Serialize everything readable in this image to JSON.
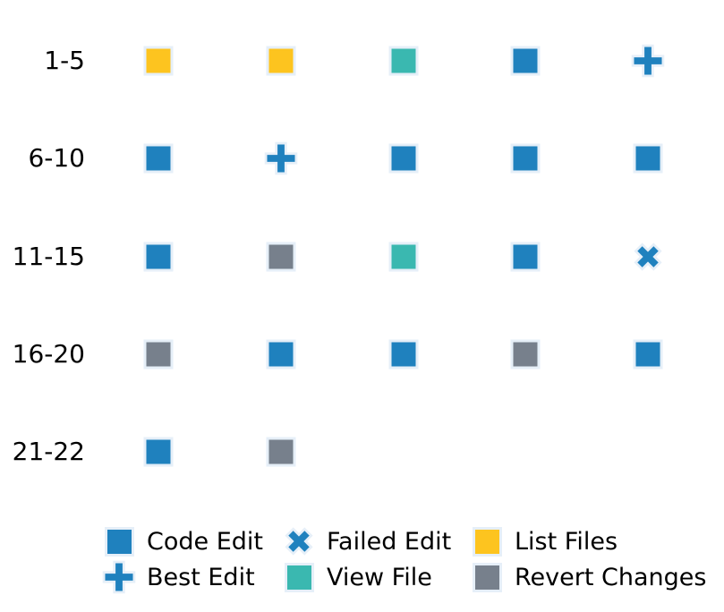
{
  "colors": {
    "background": "#FFFFFF",
    "text": "#000000",
    "code_edit_blue": "#1F81BE",
    "list_files_yellow": "#FDC41F",
    "view_file_teal": "#3AB8B0",
    "revert_gray": "#77808C",
    "marker_edge": "#E6EFF8"
  },
  "chart_data": {
    "type": "scatter",
    "title": "",
    "xlabel": "",
    "ylabel": "",
    "grid": false,
    "legend_position": "bottom",
    "row_labels": [
      "1-5",
      "6-10",
      "11-15",
      "16-20",
      "21-22"
    ],
    "rows": [
      [
        "List Files",
        "List Files",
        "View File",
        "Code Edit",
        "Best Edit"
      ],
      [
        "Code Edit",
        "Best Edit",
        "Code Edit",
        "Code Edit",
        "Code Edit"
      ],
      [
        "Code Edit",
        "Revert Changes",
        "View File",
        "Code Edit",
        "Failed Edit"
      ],
      [
        "Revert Changes",
        "Code Edit",
        "Code Edit",
        "Revert Changes",
        "Code Edit"
      ],
      [
        "Code Edit",
        "Revert Changes"
      ]
    ],
    "marker_map": {
      "Code Edit": {
        "marker": "square",
        "color": "#1F81BE"
      },
      "Best Edit": {
        "marker": "plus",
        "color": "#1F81BE"
      },
      "Failed Edit": {
        "marker": "x",
        "color": "#1F81BE"
      },
      "View File": {
        "marker": "square",
        "color": "#3AB8B0"
      },
      "List Files": {
        "marker": "square",
        "color": "#FDC41F"
      },
      "Revert Changes": {
        "marker": "square",
        "color": "#77808C"
      }
    },
    "legend": [
      {
        "label": "Code Edit",
        "marker": "square",
        "color": "#1F81BE"
      },
      {
        "label": "Failed Edit",
        "marker": "x",
        "color": "#1F81BE"
      },
      {
        "label": "List Files",
        "marker": "square",
        "color": "#FDC41F"
      },
      {
        "label": "Best Edit",
        "marker": "plus",
        "color": "#1F81BE"
      },
      {
        "label": "View File",
        "marker": "square",
        "color": "#3AB8B0"
      },
      {
        "label": "Revert Changes",
        "marker": "square",
        "color": "#77808C"
      }
    ]
  }
}
